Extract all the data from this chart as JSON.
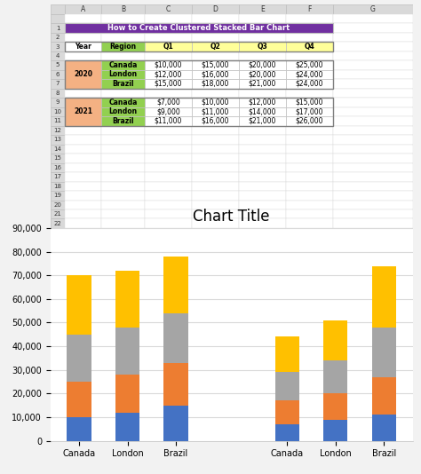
{
  "title_text": "How to Create Clustered Stacked Bar Chart",
  "title_bg": "#7030A0",
  "title_fg": "#FFFFFF",
  "header_row": [
    "Year",
    "Region",
    "Q1",
    "Q2",
    "Q3",
    "Q4"
  ],
  "header_year_bg": "#FFFFFF",
  "header_region_bg": "#92D050",
  "header_q_bg": "#FFFF99",
  "data_2020": {
    "year": "2020",
    "year_bg": "#F4B183",
    "region_bg": "#92D050",
    "rows": [
      [
        "Canada",
        "$10,000",
        "$15,000",
        "$20,000",
        "$25,000"
      ],
      [
        "London",
        "$12,000",
        "$16,000",
        "$20,000",
        "$24,000"
      ],
      [
        "Brazil",
        "$15,000",
        "$18,000",
        "$21,000",
        "$24,000"
      ]
    ]
  },
  "data_2021": {
    "year": "2021",
    "year_bg": "#F4B183",
    "region_bg": "#92D050",
    "rows": [
      [
        "Canada",
        "$7,000",
        "$10,000",
        "$12,000",
        "$15,000"
      ],
      [
        "London",
        "$9,000",
        "$11,000",
        "$14,000",
        "$17,000"
      ],
      [
        "Brazil",
        "$11,000",
        "$16,000",
        "$21,000",
        "$26,000"
      ]
    ]
  },
  "excel_bg": "#F2F2F2",
  "cell_bg": "#FFFFFF",
  "grid_line": "#BFBFBF",
  "chart_title": "Chart Title",
  "groups": [
    "Canada",
    "London",
    "Brazil"
  ],
  "years": [
    "2020",
    "2021"
  ],
  "chart_data": {
    "2020": {
      "Canada": [
        10000,
        15000,
        20000,
        25000
      ],
      "London": [
        12000,
        16000,
        20000,
        24000
      ],
      "Brazil": [
        15000,
        18000,
        21000,
        24000
      ]
    },
    "2021": {
      "Canada": [
        7000,
        10000,
        12000,
        15000
      ],
      "London": [
        9000,
        11000,
        14000,
        17000
      ],
      "Brazil": [
        11000,
        16000,
        21000,
        26000
      ]
    }
  },
  "quarters": [
    "Q1",
    "Q2",
    "Q3",
    "Q4"
  ],
  "colors": [
    "#4472C4",
    "#ED7D31",
    "#A5A5A5",
    "#FFC000"
  ],
  "ylim": [
    0,
    90000
  ],
  "yticks": [
    0,
    10000,
    20000,
    30000,
    40000,
    50000,
    60000,
    70000,
    80000,
    90000
  ],
  "col_header_colors": [
    "#FFFFFF",
    "#92D050",
    "#FFFF99",
    "#FFFF99",
    "#FFFF99",
    "#FFFF99"
  ],
  "row_num_bg": "#E0E0E0",
  "col_letter_bg": "#E0E0E0"
}
